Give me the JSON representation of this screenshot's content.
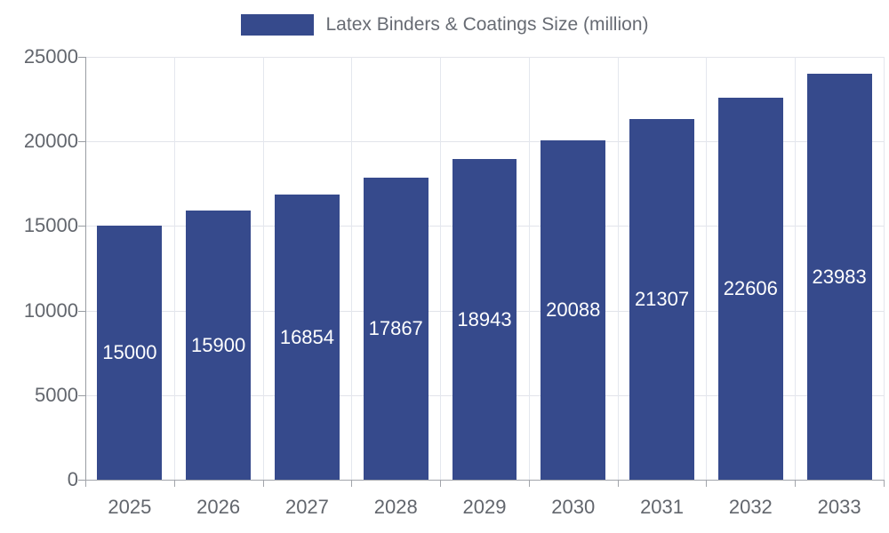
{
  "legend": {
    "label": "Latex Binders & Coatings Size (million)"
  },
  "chart_data": {
    "type": "bar",
    "title": "",
    "xlabel": "",
    "ylabel": "",
    "categories": [
      "2025",
      "2026",
      "2027",
      "2028",
      "2029",
      "2030",
      "2031",
      "2032",
      "2033"
    ],
    "series": [
      {
        "name": "Latex Binders & Coatings Size (million)",
        "values": [
          15000,
          15900,
          16854,
          17867,
          18943,
          20088,
          21307,
          22606,
          23983
        ]
      }
    ],
    "ylim": [
      0,
      25000
    ],
    "y_ticks": [
      0,
      5000,
      10000,
      15000,
      20000,
      25000
    ],
    "grid": true,
    "legend_position": "top",
    "value_labels": "inside-center"
  },
  "colors": {
    "bar": "#364A8C",
    "bar_label": "#ffffff",
    "axis_text": "#62666d",
    "legend_text": "#676b73",
    "gridline": "#e2e4ea",
    "axis_line": "#999da3",
    "background": "#ffffff"
  }
}
